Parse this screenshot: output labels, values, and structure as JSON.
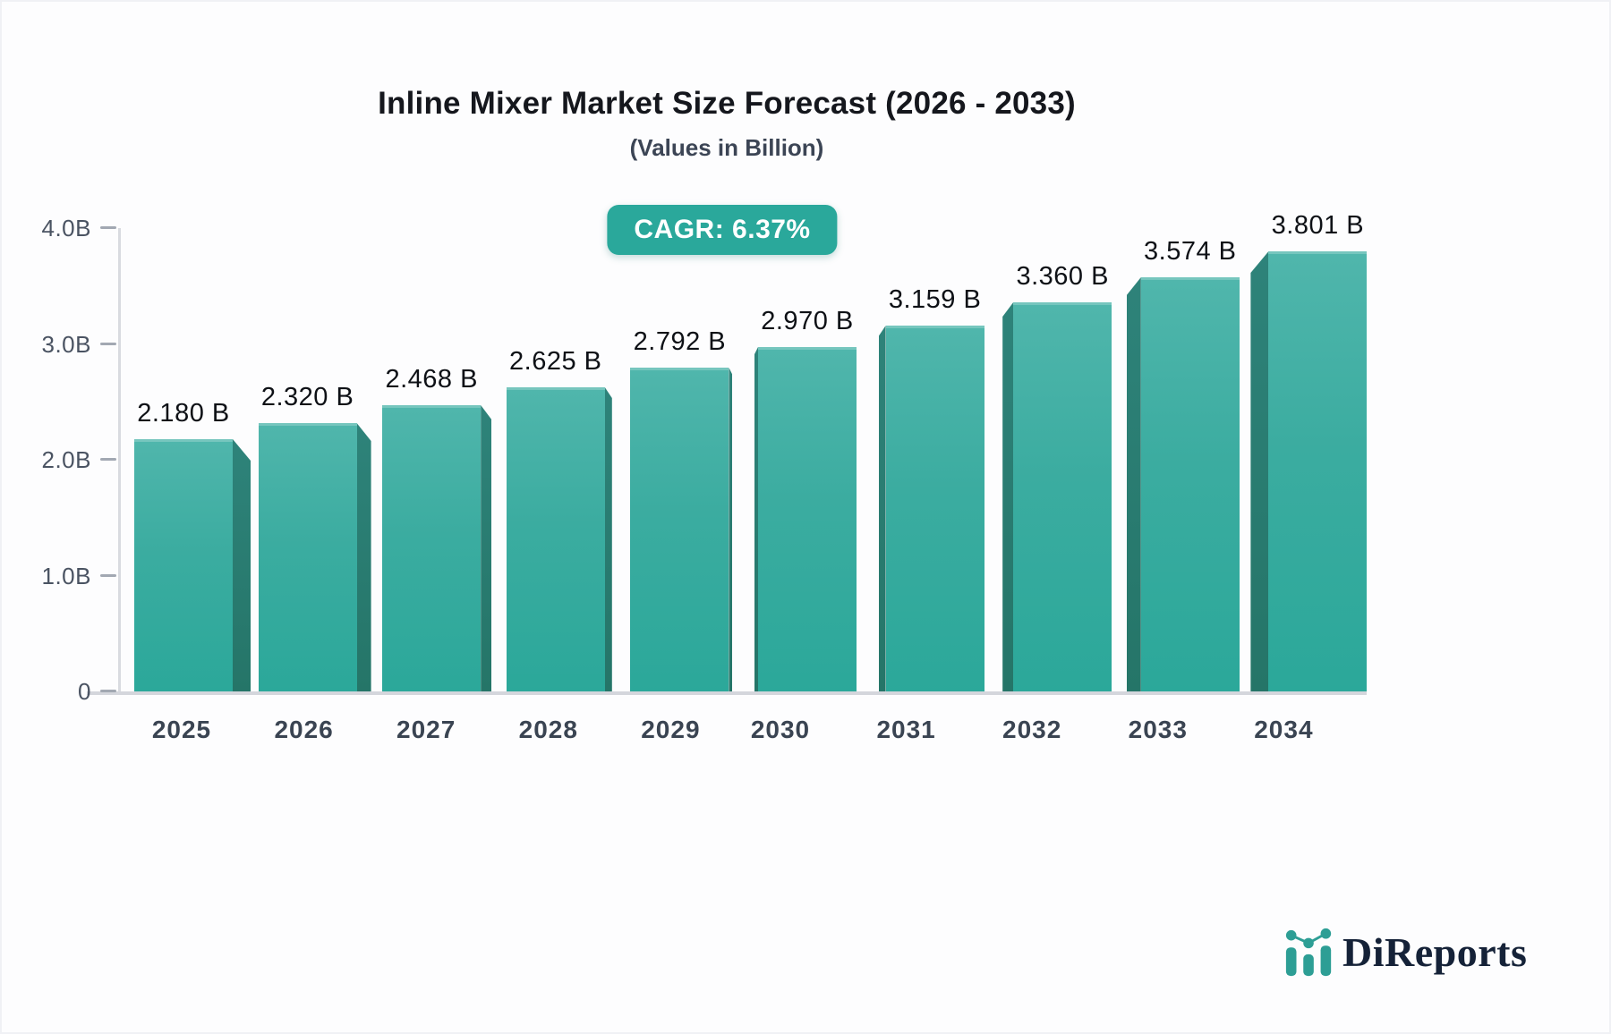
{
  "title": "Inline Mixer Market Size Forecast (2026 - 2033)",
  "subtitle": "(Values in Billion)",
  "cagr_label": "CAGR: 6.37%",
  "brand": {
    "name": "DiReports",
    "icon": "bar-line-chart-icon"
  },
  "colors": {
    "accent_teal": "#2aa89b",
    "bar_face_top": "#50b6ac",
    "bar_face_bottom": "#2ba89a",
    "bar_side_dark": "#2a7d74",
    "axis_gray": "#d6d8de",
    "tick_dash_gray": "#a2a8b2",
    "y_label_gray": "#4a5362",
    "x_label_dark": "#3a4452",
    "value_label_black": "#0e1116",
    "title_black": "#15171d",
    "subtitle_slate": "#3c4555",
    "logo_navy": "#152238",
    "logo_teal": "#2d9e95",
    "background": "#fdfdfe"
  },
  "chart_data": {
    "type": "bar",
    "categories": [
      "2025",
      "2026",
      "2027",
      "2028",
      "2029",
      "2030",
      "2031",
      "2032",
      "2033",
      "2034"
    ],
    "values": [
      2.18,
      2.32,
      2.468,
      2.625,
      2.792,
      2.97,
      3.159,
      3.36,
      3.574,
      3.801
    ],
    "value_labels": [
      "2.180 B",
      "2.320 B",
      "2.468 B",
      "2.625 B",
      "2.792 B",
      "2.970 B",
      "3.159 B",
      "3.360 B",
      "3.574 B",
      "3.801 B"
    ],
    "title": "Inline Mixer Market Size Forecast (2026 - 2033)",
    "subtitle": "(Values in Billion)",
    "annotation": "CAGR: 6.37%",
    "xlabel": "",
    "ylabel": "",
    "y_tick_labels": [
      "0",
      "1.0B",
      "2.0B",
      "3.0B",
      "4.0B"
    ],
    "ylim": [
      0,
      4.0
    ],
    "grid": "off",
    "legend": "none",
    "bar_style": "3d-beveled-teal-gradient"
  }
}
